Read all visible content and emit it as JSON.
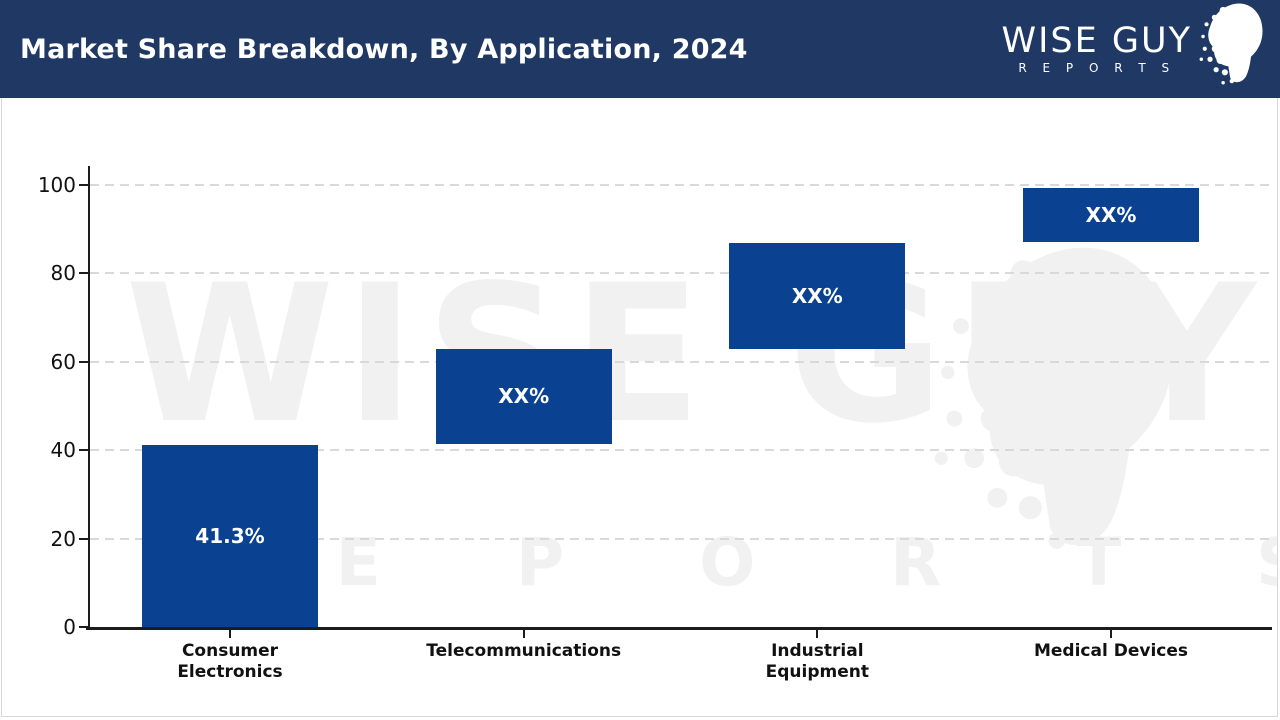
{
  "header": {
    "bg_color": "#1f3864",
    "title": "Market Share Breakdown, By Application, 2024",
    "logo": {
      "line1": "WISE GUY",
      "line2": "R E P O R T S"
    }
  },
  "watermark": {
    "line1": "WISE GUY",
    "line2": "R E P O R T S"
  },
  "chart_data": {
    "type": "bar",
    "subtype": "waterfall-stepped-bars",
    "title": "Market Share Breakdown, By Application, 2024",
    "xlabel": "",
    "ylabel": "",
    "ylim": [
      0,
      100
    ],
    "yticks": [
      0,
      20,
      40,
      60,
      80,
      100
    ],
    "grid": "horizontal-dashed",
    "legend": "none",
    "categories": [
      "Consumer Electronics",
      "Telecommunications",
      "Industrial Equipment",
      "Medical Devices"
    ],
    "category_label_lines": [
      [
        "Consumer",
        "Electronics"
      ],
      [
        "Telecommunications"
      ],
      [
        "Industrial",
        "Equipment"
      ],
      [
        "Medical Devices"
      ]
    ],
    "bars": [
      {
        "category": "Consumer Electronics",
        "start": 0,
        "end": 41.3,
        "label": "41.3%"
      },
      {
        "category": "Telecommunications",
        "start": 41.3,
        "end": 63,
        "label": "XX%"
      },
      {
        "category": "Industrial Equipment",
        "start": 63,
        "end": 87,
        "label": "XX%"
      },
      {
        "category": "Medical Devices",
        "start": 87,
        "end": 99.3,
        "label": "XX%"
      }
    ],
    "colors": {
      "bar": "#0a4191",
      "bar_label": "#ffffff",
      "grid": "#d9d9d9",
      "axis": "#1c1c1c",
      "tick_label": "#111111"
    }
  }
}
